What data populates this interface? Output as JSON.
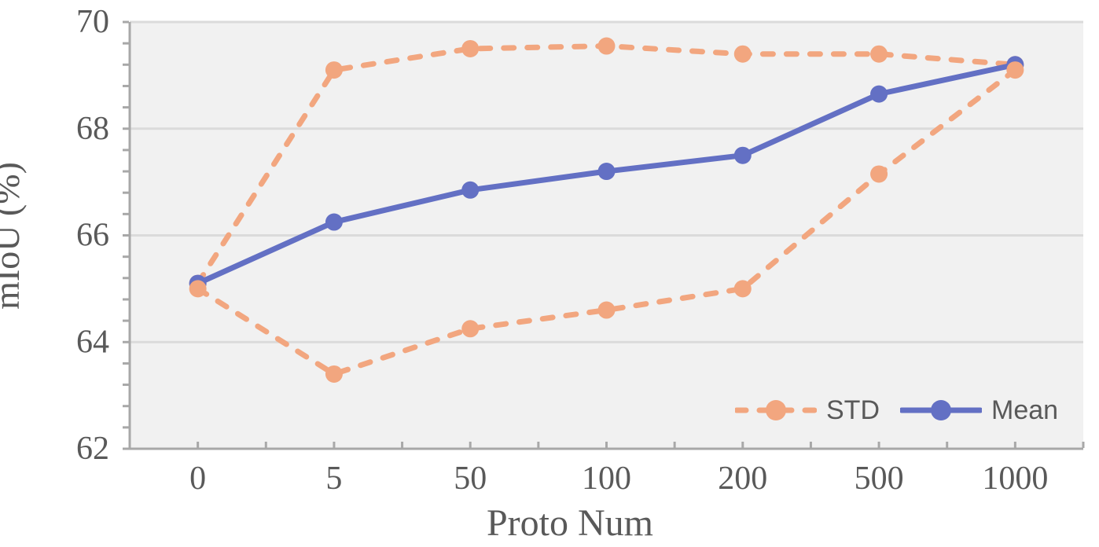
{
  "chart_data": {
    "type": "line",
    "title": "",
    "xlabel": "Proto Num",
    "ylabel": "mIoU (%)",
    "categories": [
      "0",
      "5",
      "50",
      "100",
      "200",
      "500",
      "1000"
    ],
    "y_ticks": [
      70,
      68,
      66,
      64,
      62
    ],
    "ylim": [
      62,
      70
    ],
    "grid": "horizontal-major",
    "legend_position": "inside-bottom-right",
    "series": [
      {
        "name": "STD",
        "role": "std-upper-band",
        "style": "dashed",
        "values": [
          65.1,
          69.1,
          69.5,
          69.55,
          69.4,
          69.4,
          69.2
        ]
      },
      {
        "name": "Mean",
        "role": "mean",
        "style": "solid",
        "values": [
          65.1,
          66.25,
          66.85,
          67.2,
          67.5,
          68.65,
          69.2
        ]
      },
      {
        "name": "STD",
        "role": "std-lower-band",
        "style": "dashed",
        "values": [
          65.0,
          63.4,
          64.25,
          64.6,
          65.0,
          67.15,
          69.1
        ]
      }
    ],
    "legend": {
      "std_label": "STD",
      "mean_label": "Mean"
    },
    "colors": {
      "std": "#F2A67F",
      "mean": "#6370C4",
      "axis": "#A8A8A8",
      "grid": "#DBDBDB",
      "text": "#595959",
      "plot_bg": "#F1F1F1",
      "page_bg": "#FFFFFF"
    }
  }
}
